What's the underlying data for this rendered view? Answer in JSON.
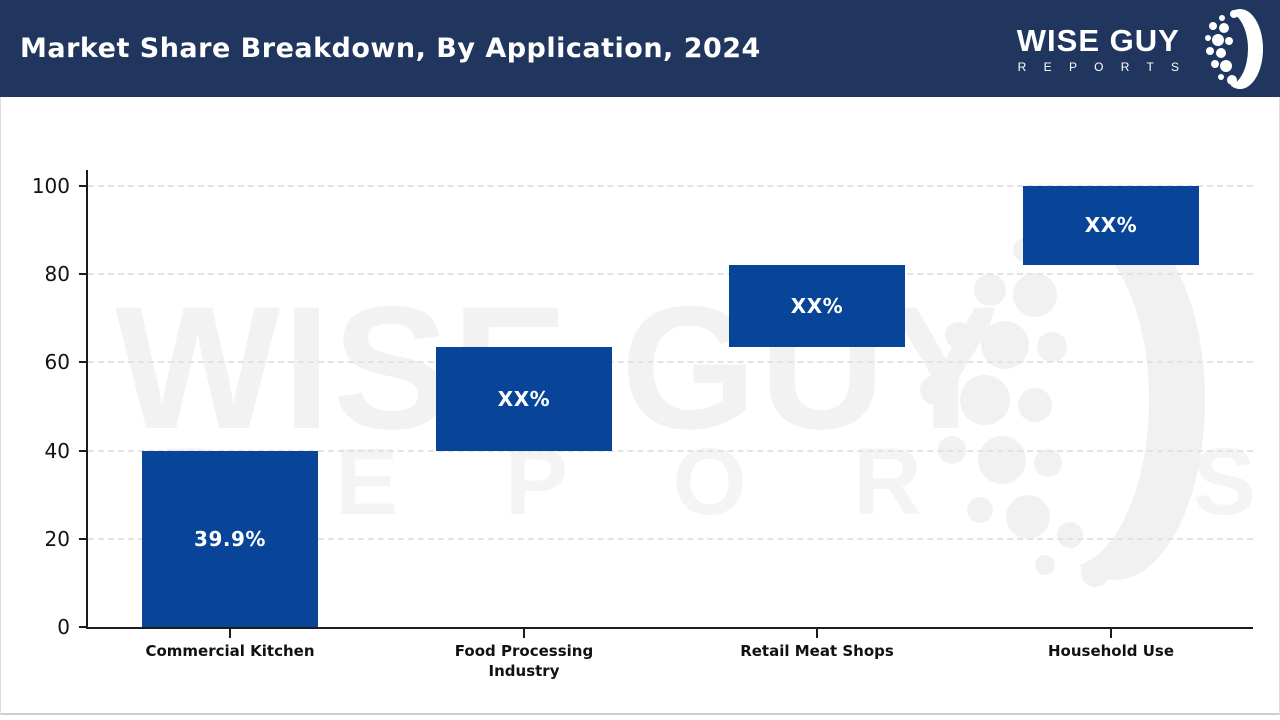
{
  "header": {
    "title": "Market Share Breakdown, By Application, 2024",
    "logo_line1": "WISE GUY",
    "logo_line2": "R E P O R T S"
  },
  "watermark": {
    "line1": "WISE GUY",
    "line2": "R E P O R T S"
  },
  "chart_data": {
    "type": "bar",
    "subtype": "waterfall-stacked",
    "title": "Market Share Breakdown, By Application, 2024",
    "categories": [
      "Commercial Kitchen",
      "Food Processing Industry",
      "Retail Meat Shops",
      "Household Use"
    ],
    "segments": [
      {
        "category": "Commercial Kitchen",
        "start": 0,
        "end": 39.9,
        "label": "39.9%"
      },
      {
        "category": "Food Processing Industry",
        "start": 39.9,
        "end": 63.4,
        "label": "XX%"
      },
      {
        "category": "Retail Meat Shops",
        "start": 63.4,
        "end": 82.1,
        "label": "XX%"
      },
      {
        "category": "Household Use",
        "start": 82.1,
        "end": 100,
        "label": "XX%"
      }
    ],
    "xlabel": "",
    "ylabel": "",
    "ylim": [
      0,
      100
    ],
    "yticks": [
      0,
      20,
      40,
      60,
      80,
      100
    ],
    "grid": "horizontal-dashed",
    "legend": "none",
    "bar_color": "#084598",
    "bar_label_color": "#ffffff",
    "colors": {
      "header_bg": "#21365f",
      "axis": "#1c1c1c",
      "gridline": "#e3e3e3",
      "watermark": "#f2f2f2"
    }
  }
}
